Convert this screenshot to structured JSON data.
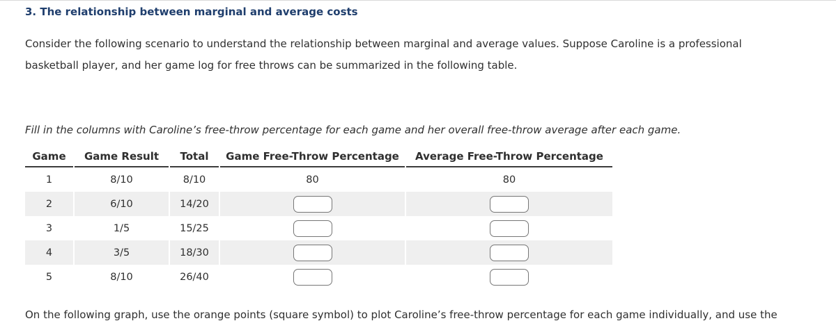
{
  "page": {
    "title": "3. The relationship between marginal and average costs",
    "intro": "Consider the following scenario to understand the relationship between marginal and average values. Suppose Caroline is a professional basketball player, and her game log for free throws can be summarized in the following table.",
    "instruction": "Fill in the columns with Caroline’s free-throw percentage for each game and her overall free-throw average after each game.",
    "footer_partial": "On the following graph, use the orange points (square symbol) to plot Caroline’s free-throw percentage for each game individually, and use the"
  },
  "table": {
    "columns": [
      "Game",
      "Game Result",
      "Total",
      "Game Free-Throw Percentage",
      "Average Free-Throw Percentage"
    ],
    "rows": [
      {
        "game": "1",
        "result": "8/10",
        "total": "8/10",
        "game_pct": "80",
        "avg_pct": "80",
        "filled": true
      },
      {
        "game": "2",
        "result": "6/10",
        "total": "14/20",
        "game_pct": "",
        "avg_pct": "",
        "filled": false
      },
      {
        "game": "3",
        "result": "1/5",
        "total": "15/25",
        "game_pct": "",
        "avg_pct": "",
        "filled": false
      },
      {
        "game": "4",
        "result": "3/5",
        "total": "18/30",
        "game_pct": "",
        "avg_pct": "",
        "filled": false
      },
      {
        "game": "5",
        "result": "8/10",
        "total": "26/40",
        "game_pct": "",
        "avg_pct": "",
        "filled": false
      }
    ]
  },
  "colors": {
    "heading_navy": "#1f3e6d",
    "body_text": "#2f2f2f",
    "row_stripe": "#efefef",
    "header_rule": "#3b3b3b",
    "input_border": "#767676",
    "top_border": "#d9d9d9"
  }
}
